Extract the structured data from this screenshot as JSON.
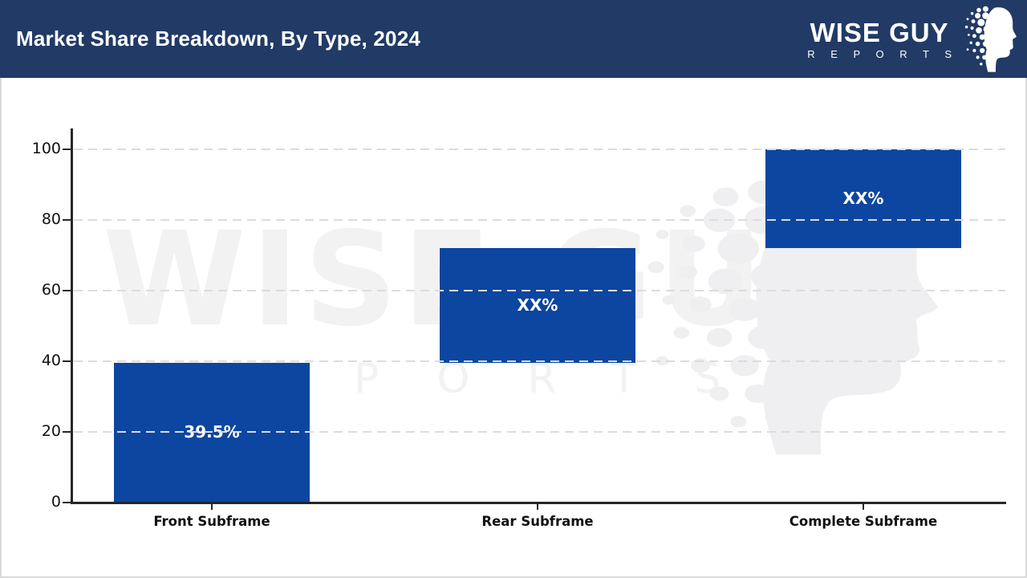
{
  "header": {
    "title": "Market Share Breakdown, By Type, 2024",
    "logo": {
      "line1": "WISE GUY",
      "line2": "R E P O R T S"
    }
  },
  "watermark": {
    "line1": "WISE GUY",
    "line2": "REPORTS"
  },
  "chart_data": {
    "type": "bar",
    "subtype": "waterfall",
    "title": "Market Share Breakdown, By Type, 2024",
    "categories": [
      "Front Subframe",
      "Rear Subframe",
      "Complete Subframe"
    ],
    "segments": [
      {
        "category": "Front Subframe",
        "start": 0,
        "end": 39.5,
        "label": "39.5%"
      },
      {
        "category": "Rear Subframe",
        "start": 39.5,
        "end": 72,
        "label": "XX%"
      },
      {
        "category": "Complete Subframe",
        "start": 72,
        "end": 100,
        "label": "XX%"
      }
    ],
    "xlabel": "",
    "ylabel": "",
    "ylim": [
      0,
      100
    ],
    "yticks": [
      0,
      20,
      40,
      60,
      80,
      100
    ],
    "grid": "horizontal-dashed",
    "legend": "none",
    "colors": {
      "bar": "#0c46a0",
      "bar_label": "#ffffff",
      "header_bg": "#213a66",
      "header_text": "#ffffff",
      "grid": "#dcdcdc",
      "axis": "#262626",
      "tick_text": "#111111",
      "watermark": "#f2f2f3"
    }
  }
}
